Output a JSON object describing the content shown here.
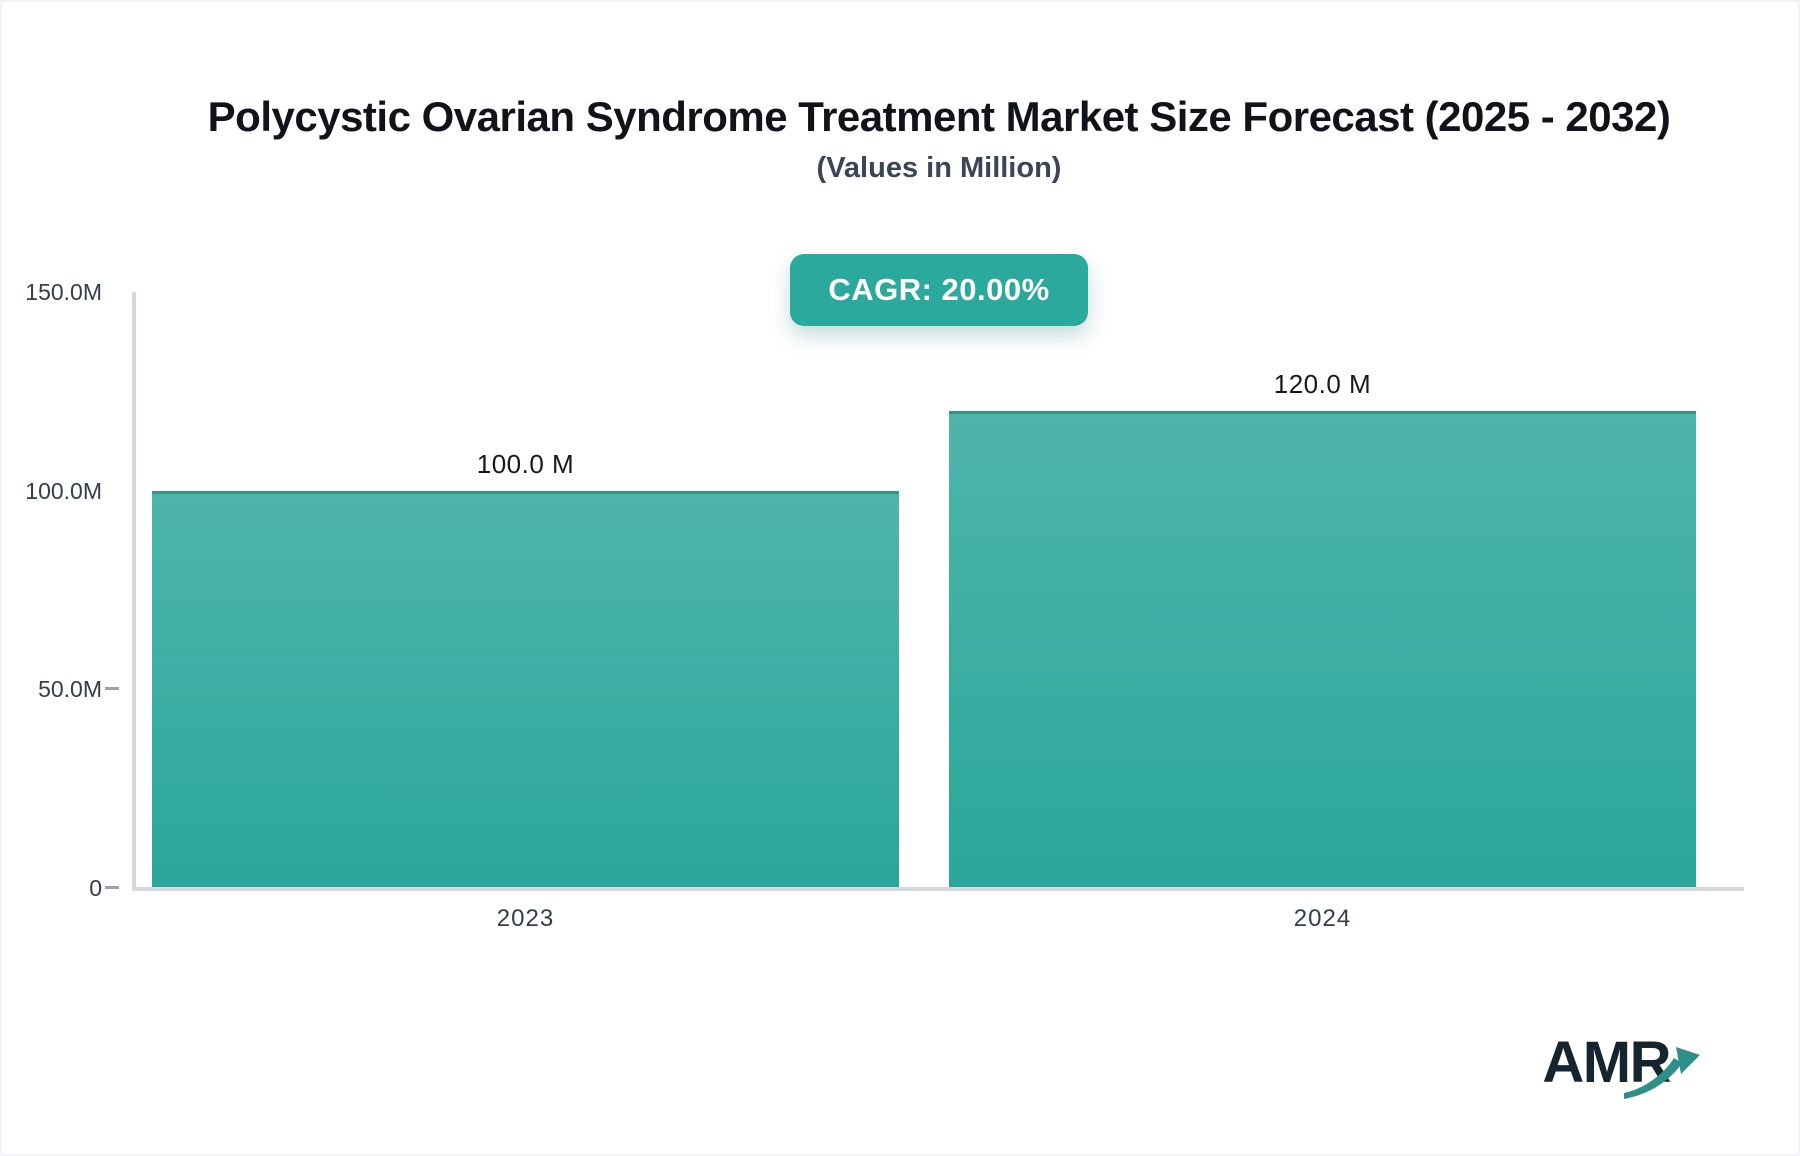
{
  "chart_data": {
    "type": "bar",
    "title": "Polycystic Ovarian Syndrome Treatment Market Size Forecast (2025 - 2032)",
    "subtitle": "(Values in Million)",
    "annotation_badge": "CAGR: 20.00%",
    "cagr_percent": 20.0,
    "unit": "Million",
    "categories": [
      "2023",
      "2024"
    ],
    "values": [
      100.0,
      120.0
    ],
    "bar_value_labels": [
      "100.0 M",
      "120.0 M"
    ],
    "xlabel": "",
    "ylabel": "",
    "ylim": [
      0,
      150
    ],
    "yticks": [
      {
        "value": 150,
        "label": "150.0M",
        "tick_mark": false
      },
      {
        "value": 100,
        "label": "100.0M",
        "tick_mark": false
      },
      {
        "value": 50,
        "label": "50.0M",
        "tick_mark": true
      },
      {
        "value": 0,
        "label": "0",
        "tick_mark": true
      }
    ],
    "grid": false,
    "legend": false
  },
  "logo": {
    "text": "AMR",
    "icon": "growth-arrow-icon"
  },
  "colors": {
    "accent_teal": "#2ba99c",
    "bar_gradient_top": "#4fb5ab",
    "bar_gradient_bottom": "#2aa79a",
    "bar_top_border": "#2e968c",
    "axis_line": "#d5d9df",
    "tick_mark": "#9aa3ad",
    "title_text": "#10141a",
    "subtitle_text": "#3a4557",
    "axis_label_text": "#323e4e",
    "bar_label_text": "#141a22",
    "badge_text": "#ffffff",
    "logo_text": "#142530",
    "logo_arrow": "#2f8f89"
  }
}
